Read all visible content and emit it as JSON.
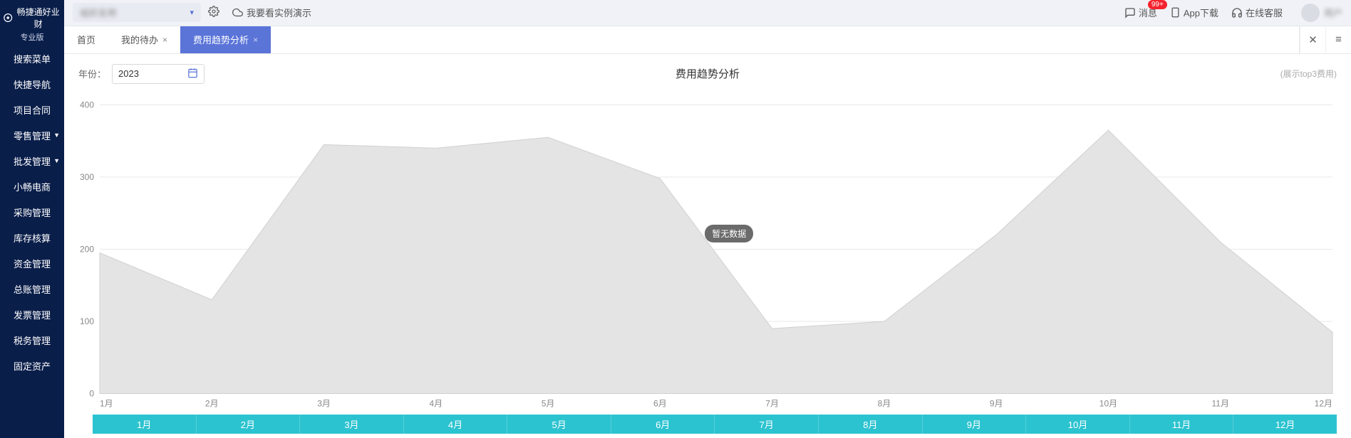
{
  "brand": {
    "name": "畅捷通好业财",
    "edition": "专业版"
  },
  "sidebar": {
    "items": [
      {
        "label": "搜索菜单",
        "caret": false
      },
      {
        "label": "快捷导航",
        "caret": false
      },
      {
        "label": "项目合同",
        "caret": false
      },
      {
        "label": "零售管理",
        "caret": true
      },
      {
        "label": "批发管理",
        "caret": true
      },
      {
        "label": "小畅电商",
        "caret": false
      },
      {
        "label": "采购管理",
        "caret": false
      },
      {
        "label": "库存核算",
        "caret": false
      },
      {
        "label": "资金管理",
        "caret": false
      },
      {
        "label": "总账管理",
        "caret": false
      },
      {
        "label": "发票管理",
        "caret": false
      },
      {
        "label": "税务管理",
        "caret": false
      },
      {
        "label": "固定资产",
        "caret": false
      }
    ]
  },
  "topbar": {
    "org_name": "组织名称",
    "demo_label": "我要看实例演示",
    "actions": {
      "message": {
        "label": "消息",
        "badge": "99+"
      },
      "app": {
        "label": "App下载"
      },
      "service": {
        "label": "在线客服"
      }
    },
    "user_name": "用户"
  },
  "tabs": {
    "items": [
      {
        "label": "首页",
        "closable": false,
        "active": false
      },
      {
        "label": "我的待办",
        "closable": true,
        "active": false
      },
      {
        "label": "费用趋势分析",
        "closable": true,
        "active": true
      }
    ]
  },
  "filter": {
    "year_label": "年份：",
    "year_value": "2023",
    "chart_title": "费用趋势分析",
    "note": "(展示top3费用)"
  },
  "chart": {
    "type": "area",
    "tooltip_text": "暂无数据",
    "ylim": [
      0,
      400
    ],
    "yticks": [
      0,
      100,
      200,
      300,
      400
    ],
    "x_labels": [
      "1月",
      "2月",
      "3月",
      "4月",
      "5月",
      "6月",
      "7月",
      "8月",
      "9月",
      "10月",
      "11月",
      "12月"
    ],
    "values": [
      195,
      130,
      345,
      340,
      355,
      298,
      90,
      100,
      220,
      365,
      210,
      85
    ],
    "area_fill": "#e4e4e4",
    "area_stroke": "#d0d0d0",
    "grid_color": "#e8e8e8",
    "axis_label_color": "#888888",
    "axis_fontsize": 12,
    "background_color": "#ffffff"
  },
  "month_strip": {
    "items": [
      "1月",
      "2月",
      "3月",
      "4月",
      "5月",
      "6月",
      "7月",
      "8月",
      "9月",
      "10月",
      "11月",
      "12月"
    ],
    "background_color": "#2cc3d0",
    "text_color": "#ffffff"
  },
  "colors": {
    "sidebar_bg": "#0a1e4a",
    "primary": "#5a74d8",
    "topbar_bg": "#f0f2f7",
    "badge_bg": "#f5222d"
  }
}
